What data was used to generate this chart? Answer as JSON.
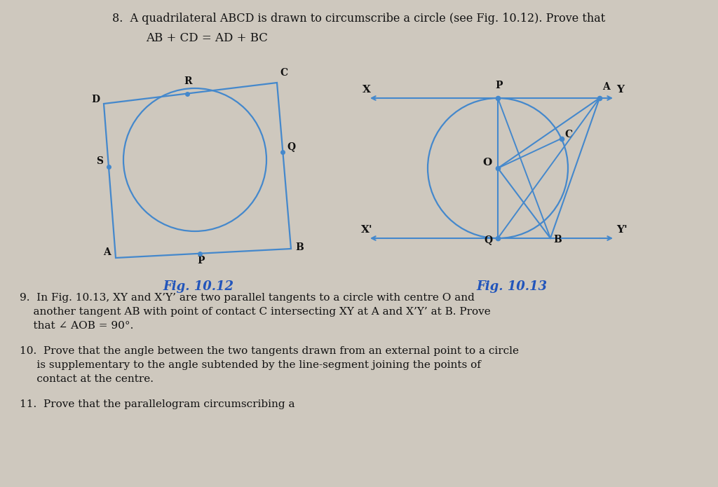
{
  "bg_color": "#cec8be",
  "blue_color": "#4488cc",
  "text_color": "#111111",
  "fig_label_color": "#2255bb",
  "title_text": "8.  A quadrilateral ABCD is drawn to circumscribe a circle (see Fig. 10.12). Prove that",
  "subtitle_text": "AB + CD = AD + BC",
  "fig1_caption": "Fig. 10.12",
  "fig2_caption": "Fig. 10.13",
  "q9_line1": "9.  In Fig. 10.13, XY and X’Y’ are two parallel tangents to a circle with centre O and",
  "q9_line2": "    another tangent AB with point of contact C intersecting XY at A and X’Y’ at B. Prove",
  "q9_line3": "    that ∠ AOB = 90°.",
  "q10_line1": "10.  Prove that the angle between the two tangents drawn from an external point to a circle",
  "q10_line2": "     is supplementary to the angle subtended by the line-segment joining the points of",
  "q10_line3": "     contact at the centre.",
  "q11_line1": "11.  Prove that the parallelogram circumscribing a"
}
